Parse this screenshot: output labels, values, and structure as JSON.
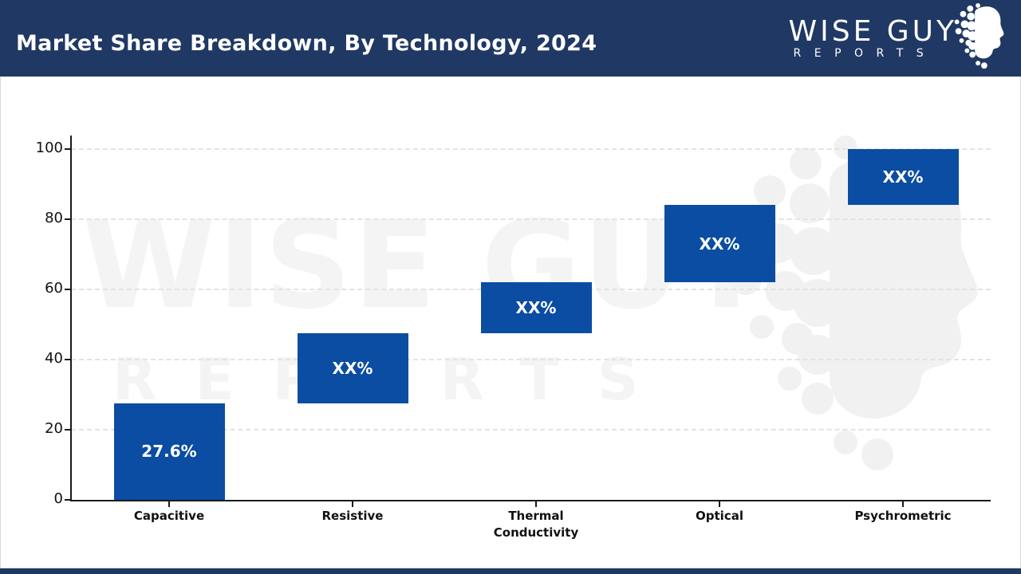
{
  "header": {
    "title": "Market Share Breakdown, By Technology, 2024",
    "logo": {
      "line1": "WISE GUY",
      "line2": "REPORTS"
    }
  },
  "watermark": {
    "line1": "WISE GUY",
    "line2": "REPORTS"
  },
  "colors": {
    "header_bg": "#203864",
    "footer_bg": "#203864",
    "bar": "#0b4da2",
    "bar_label_text": "#ffffff",
    "grid": "#e3e3e3",
    "axis": "#1a1a1a",
    "tick_text": "#111111",
    "watermark": "#f4f4f4",
    "panel_border": "#d9d9d9"
  },
  "chart_data": {
    "type": "bar",
    "subtype": "waterfall",
    "title": "Market Share Breakdown, By Technology, 2024",
    "xlabel": "",
    "ylabel": "",
    "categories": [
      "Capacitive",
      "Resistive",
      "Thermal Conductivity",
      "Optical",
      "Psychrometric"
    ],
    "segments": [
      {
        "category": "Capacitive",
        "start": 0,
        "end": 27.6,
        "label": "27.6%"
      },
      {
        "category": "Resistive",
        "start": 27.6,
        "end": 47.6,
        "label": "XX%"
      },
      {
        "category": "Thermal Conductivity",
        "start": 47.6,
        "end": 62,
        "label": "XX%"
      },
      {
        "category": "Optical",
        "start": 62,
        "end": 84,
        "label": "XX%"
      },
      {
        "category": "Psychrometric",
        "start": 84,
        "end": 100,
        "label": "XX%"
      }
    ],
    "yticks": [
      0,
      20,
      40,
      60,
      80,
      100
    ],
    "ylim": [
      0,
      104
    ],
    "grid": "horizontal-dashed",
    "legend": "none"
  }
}
